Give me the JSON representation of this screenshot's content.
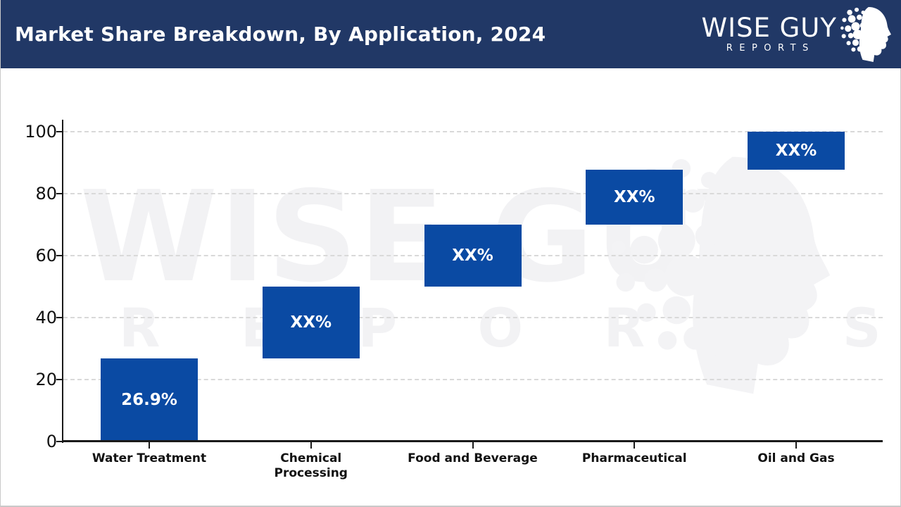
{
  "header": {
    "title": "Market Share Breakdown, By Application, 2024",
    "bg_color": "#213866",
    "logo": {
      "line1": "WISE GUY",
      "line2": "REPORTS"
    }
  },
  "watermark": {
    "line1": "WISE GUY",
    "line2": "R E P O R T S"
  },
  "chart_data": {
    "type": "bar",
    "subtype": "waterfall-floating-bars",
    "title": "Market Share Breakdown, By Application, 2024",
    "xlabel": "",
    "ylabel": "",
    "categories": [
      "Water Treatment",
      "Chemical\nProcessing",
      "Food and Beverage",
      "Pharmaceutical",
      "Oil and Gas"
    ],
    "series": [
      {
        "name": "Market Share (%)",
        "segments": [
          {
            "category": "Water Treatment",
            "start": 0,
            "end": 26.9,
            "label": "26.9%"
          },
          {
            "category": "Chemical Processing",
            "start": 26.9,
            "end": 49.9,
            "label": "XX%"
          },
          {
            "category": "Food and Beverage",
            "start": 49.9,
            "end": 69.9,
            "label": "XX%"
          },
          {
            "category": "Pharmaceutical",
            "start": 69.9,
            "end": 87.7,
            "label": "XX%"
          },
          {
            "category": "Oil and Gas",
            "start": 87.7,
            "end": 100,
            "label": "XX%"
          }
        ]
      }
    ],
    "yticks": [
      0,
      20,
      40,
      60,
      80,
      100
    ],
    "ylim": [
      0,
      105
    ],
    "grid": "horizontal-dashed",
    "legend": "none",
    "bar_color": "#0a4aa3",
    "bar_label_color": "#ffffff",
    "axis_color": "#1a1a1a",
    "gridline_color": "#d9d9d9"
  }
}
